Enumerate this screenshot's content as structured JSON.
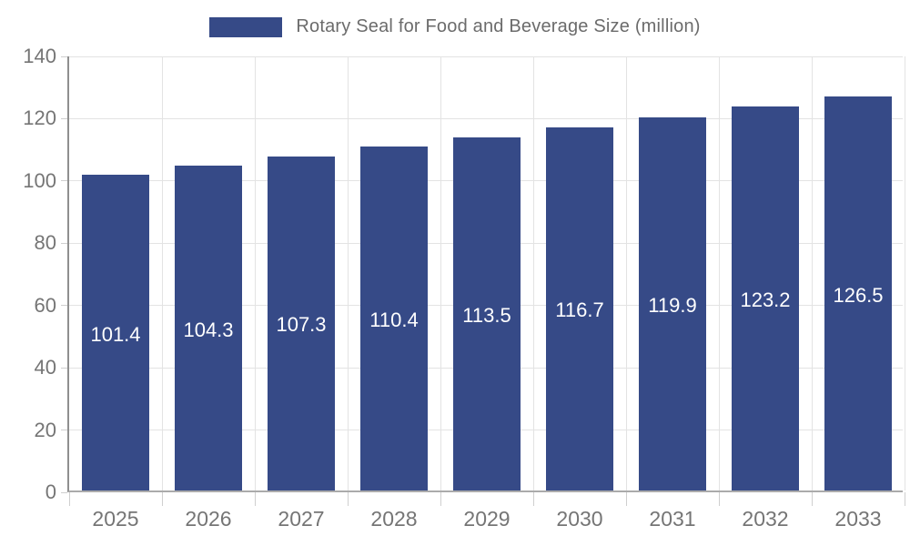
{
  "legend": {
    "label": "Rotary Seal for Food and Beverage Size (million)",
    "swatch_color": "#364a87"
  },
  "chart_data": {
    "type": "bar",
    "title": "",
    "xlabel": "",
    "ylabel": "",
    "categories": [
      "2025",
      "2026",
      "2027",
      "2028",
      "2029",
      "2030",
      "2031",
      "2032",
      "2033"
    ],
    "series": [
      {
        "name": "Rotary Seal for Food and Beverage Size (million)",
        "values": [
          101.4,
          104.3,
          107.3,
          110.4,
          113.5,
          116.7,
          119.9,
          123.2,
          126.5
        ]
      }
    ],
    "value_labels": [
      "101.4",
      "104.3",
      "107.3",
      "110.4",
      "113.5",
      "116.7",
      "119.9",
      "123.2",
      "126.5"
    ],
    "ylim": [
      0,
      140
    ],
    "yticks": [
      0,
      20,
      40,
      60,
      80,
      100,
      120,
      140
    ],
    "grid": true,
    "legend_position": "top",
    "colors": {
      "bar": "#364a87",
      "bar_value_text": "#ffffff",
      "grid_line": "#e3e3e3",
      "axis_y_line": "#8f8f8f",
      "axis_x_line": "#ababab",
      "tick_mark": "#cfcfcf",
      "tick_text": "#757575",
      "legend_text": "#6b6b6b"
    }
  }
}
